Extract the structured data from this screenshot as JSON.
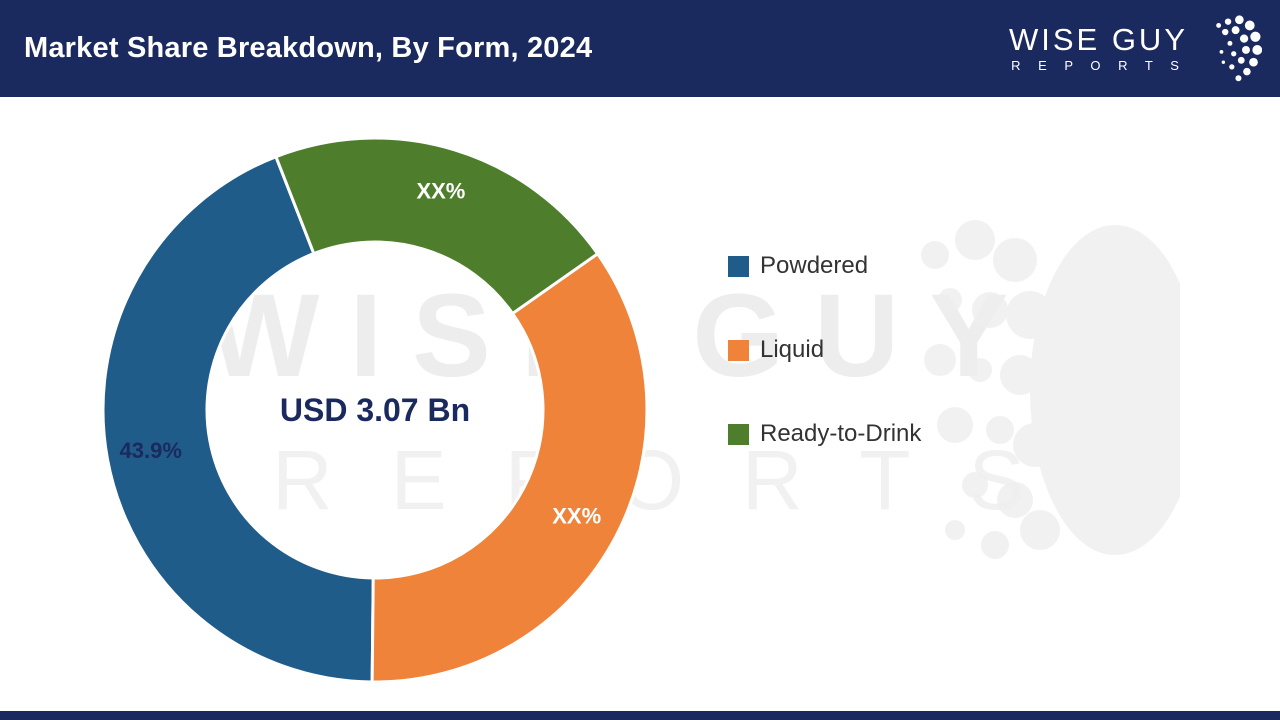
{
  "header": {
    "title": "Market Share Breakdown, By Form, 2024",
    "bg_color": "#1b2a5e",
    "logo": {
      "line1": "WISE GUY",
      "line2": "R E P O R T S"
    }
  },
  "watermark": {
    "line1": "WISE GUY",
    "line2": "REPORTS"
  },
  "chart_data": {
    "type": "pie",
    "subtype": "donut",
    "center_label": "USD 3.07 Bn",
    "center_label_color": "#1b2a5e",
    "start_angle_deg": 180.6,
    "outer_radius": 272,
    "inner_radius": 168,
    "label_radius": 228,
    "segments": [
      {
        "name": "Powdered",
        "value": 43.9,
        "label": "43.9%",
        "color": "#1f5c8a",
        "label_color": "#1b2a5e"
      },
      {
        "name": "Ready-to-Drink",
        "value": 21.2,
        "label": "XX%",
        "color": "#4e7d2c",
        "label_color": "#ffffff"
      },
      {
        "name": "Liquid",
        "value": 34.9,
        "label": "XX%",
        "color": "#f0833a",
        "label_color": "#ffffff"
      }
    ],
    "legend": [
      {
        "label": "Powdered",
        "color": "#1f5c8a"
      },
      {
        "label": "Liquid",
        "color": "#f0833a"
      },
      {
        "label": "Ready-to-Drink",
        "color": "#4e7d2c"
      }
    ],
    "legend_position": "right"
  },
  "footer": {
    "bg_color": "#1b2a5e"
  }
}
